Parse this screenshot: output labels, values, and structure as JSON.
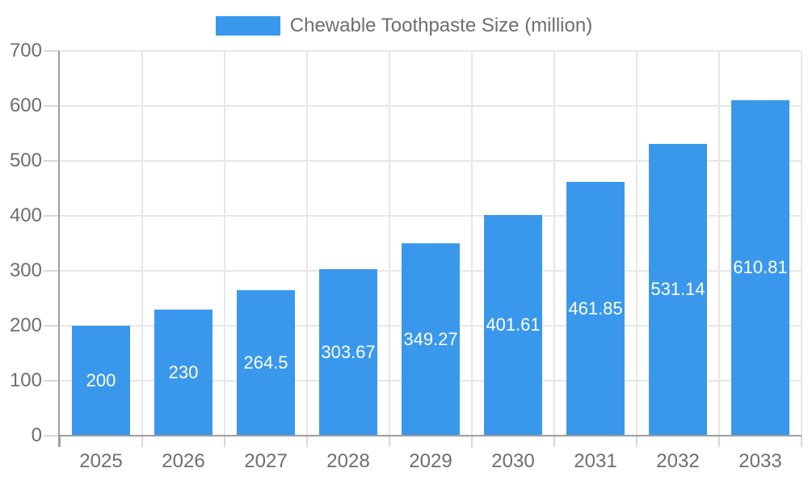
{
  "chart_data": {
    "type": "bar",
    "title": "",
    "legend": "Chewable Toothpaste Size (million)",
    "legend_position": "top",
    "categories": [
      "2025",
      "2026",
      "2027",
      "2028",
      "2029",
      "2030",
      "2031",
      "2032",
      "2033"
    ],
    "series": [
      {
        "name": "Chewable Toothpaste Size (million)",
        "values": [
          200,
          230,
          264.5,
          303.67,
          349.27,
          401.61,
          461.85,
          531.14,
          610.81
        ],
        "labels": [
          "200",
          "230",
          "264.5",
          "303.67",
          "349.27",
          "401.61",
          "461.85",
          "531.14",
          "610.81"
        ]
      }
    ],
    "xlabel": "",
    "ylabel": "",
    "ylim": [
      0,
      700
    ],
    "ytick_step": 100,
    "yticks": [
      "0",
      "100",
      "200",
      "300",
      "400",
      "500",
      "600",
      "700"
    ],
    "grid": true,
    "colors": {
      "bar": "#3a98ec",
      "grid": "#e7e7e7",
      "tick": "#d8d8d8",
      "axis": "#9e9e9e",
      "label": "#6e6e6e",
      "value_label": "#ffffff",
      "background": "#ffffff"
    }
  }
}
